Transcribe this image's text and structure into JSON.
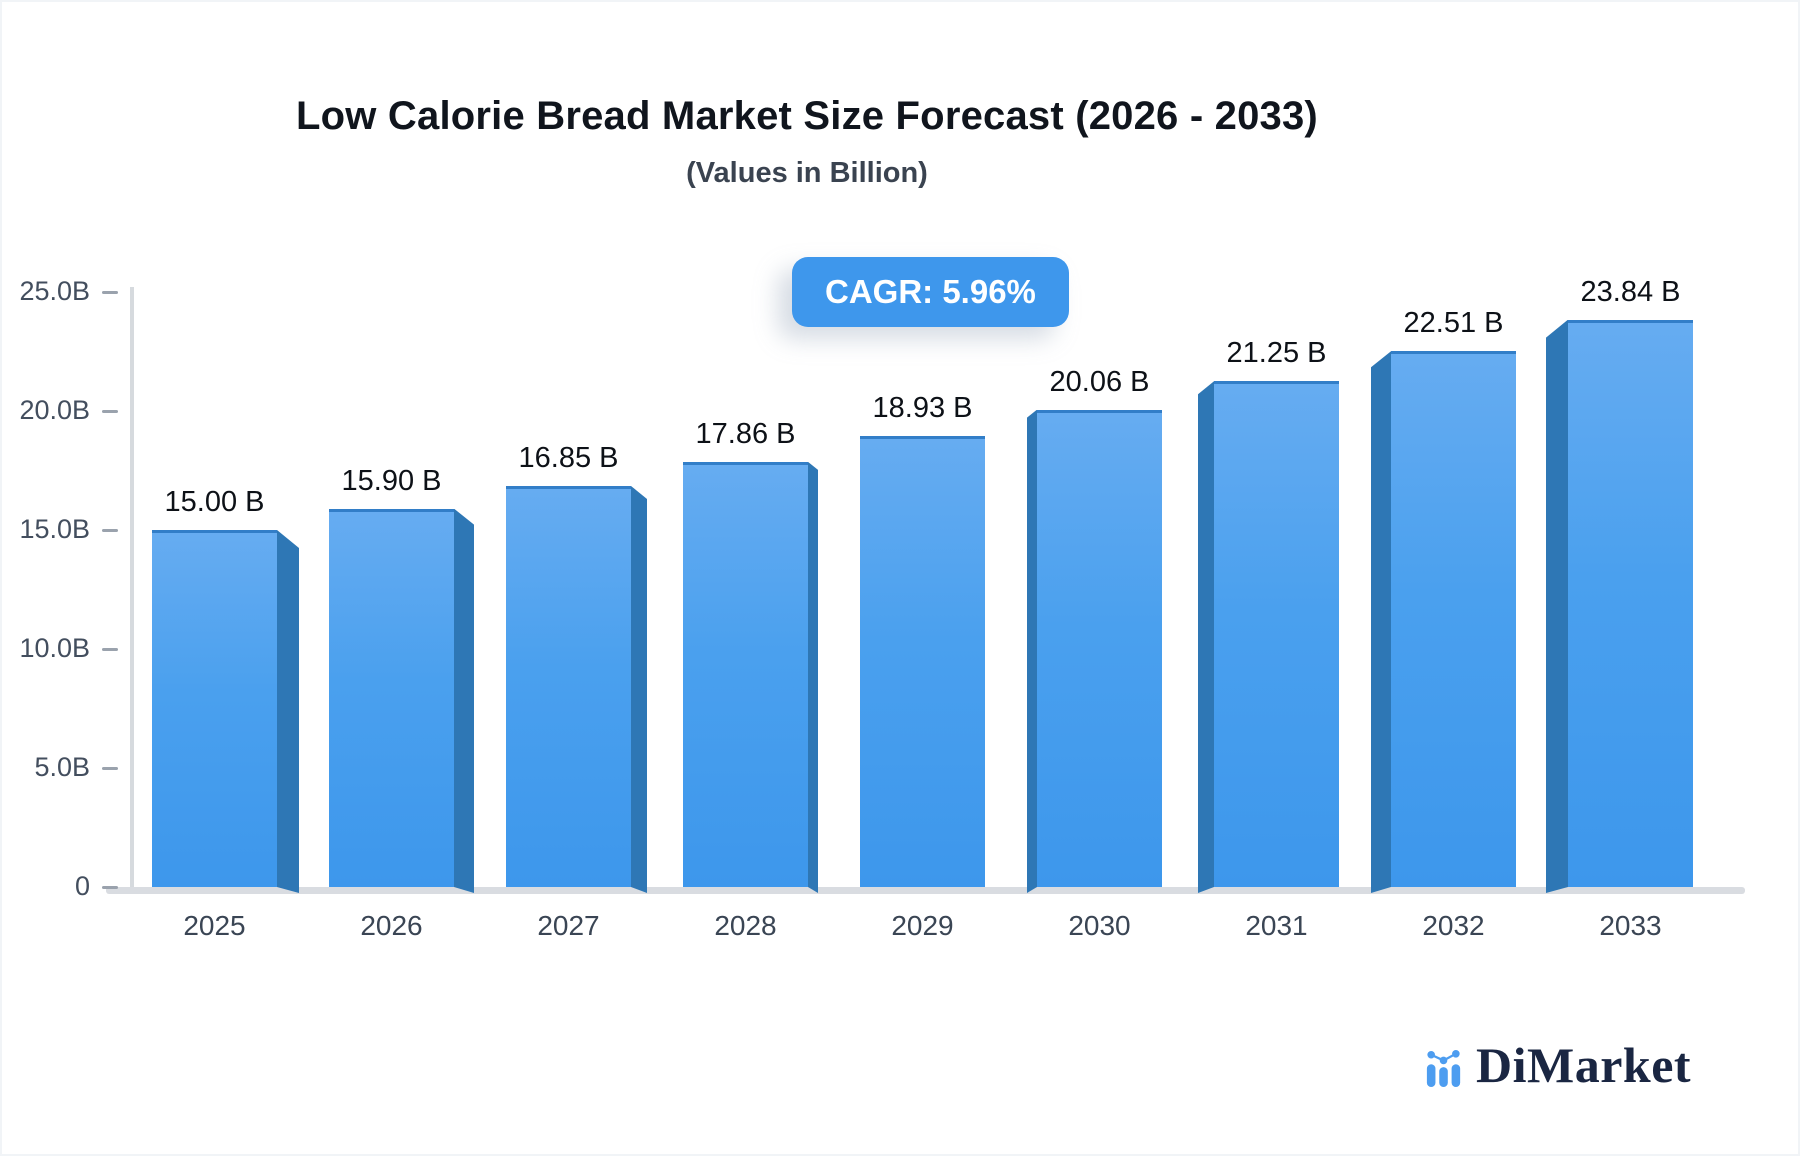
{
  "page": {
    "background": "#ffffff",
    "frame_border": "#f1f4f7"
  },
  "header": {
    "title": "Low Calorie Bread Market Size Forecast (2026 - 2033)",
    "subtitle": "(Values in Billion)"
  },
  "badge": {
    "label": "CAGR: 5.96%",
    "background": "#3e97ec",
    "text_color": "#ffffff"
  },
  "chart_data": {
    "type": "bar",
    "title": "Low Calorie Bread Market Size Forecast (2026 - 2033)",
    "subtitle": "(Values in Billion)",
    "categories": [
      "2025",
      "2026",
      "2027",
      "2028",
      "2029",
      "2030",
      "2031",
      "2032",
      "2033"
    ],
    "values": [
      15.0,
      15.9,
      16.85,
      17.86,
      18.93,
      20.06,
      21.25,
      22.51,
      23.84
    ],
    "labels": [
      "15.00 B",
      "15.90 B",
      "16.85 B",
      "17.86 B",
      "18.93 B",
      "20.06 B",
      "21.25 B",
      "22.51 B",
      "23.84 B"
    ],
    "unit": "Billion",
    "xlabel": "",
    "ylabel": "",
    "ylim": [
      0,
      25
    ],
    "yticks": [
      {
        "value": 25,
        "label": "25.0B"
      },
      {
        "value": 20,
        "label": "20.0B"
      },
      {
        "value": 15,
        "label": "15.0B"
      },
      {
        "value": 10,
        "label": "10.0B"
      },
      {
        "value": 5,
        "label": "5.0B"
      },
      {
        "value": 0,
        "label": "0"
      }
    ],
    "grid": false,
    "legend_position": "none",
    "bar_color_top": "#66acf1",
    "bar_color_bottom": "#3d97ec",
    "bar_side_color": "#2e77b5",
    "axis_color": "#d6dade",
    "tick_text_color": "#434e5e",
    "value_label_color": "#0d1117"
  },
  "logo": {
    "text": "DiMarket",
    "icon": "bar-chart-sparkline-icon",
    "text_color": "#1a2642",
    "icon_color": "#4d9df0"
  }
}
